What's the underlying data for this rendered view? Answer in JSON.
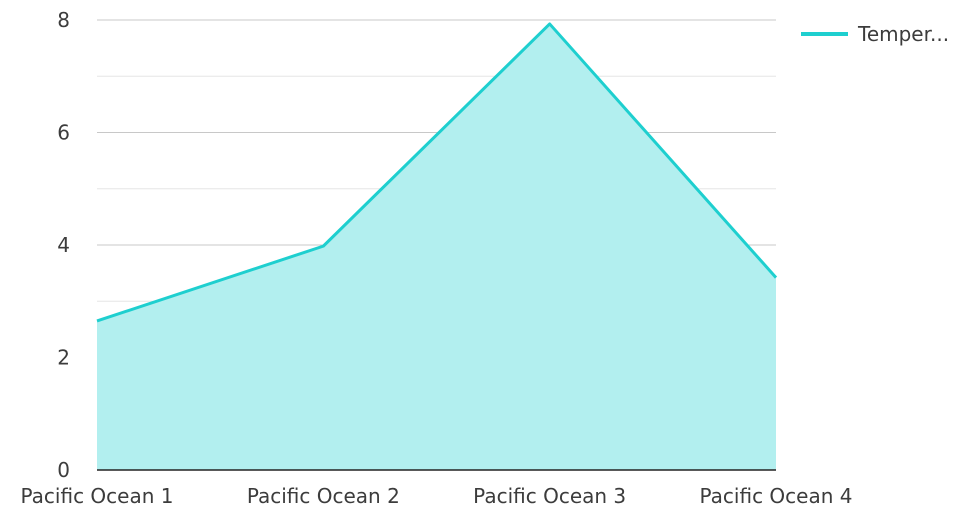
{
  "chart_data": {
    "type": "area",
    "categories": [
      "Pacific Ocean 1",
      "Pacific Ocean 2",
      "Pacific Ocean 3",
      "Pacific Ocean 4"
    ],
    "series": [
      {
        "name": "Temper...",
        "values": [
          2.65,
          3.98,
          7.93,
          3.42
        ],
        "line_color": "#1ecfcf",
        "fill_color": "#b2efef"
      }
    ],
    "ylim": [
      0,
      8
    ],
    "yticks": [
      0,
      2,
      4,
      6,
      8
    ],
    "grid": true,
    "legend_position": "top-right",
    "xlabel": "",
    "ylabel": ""
  }
}
